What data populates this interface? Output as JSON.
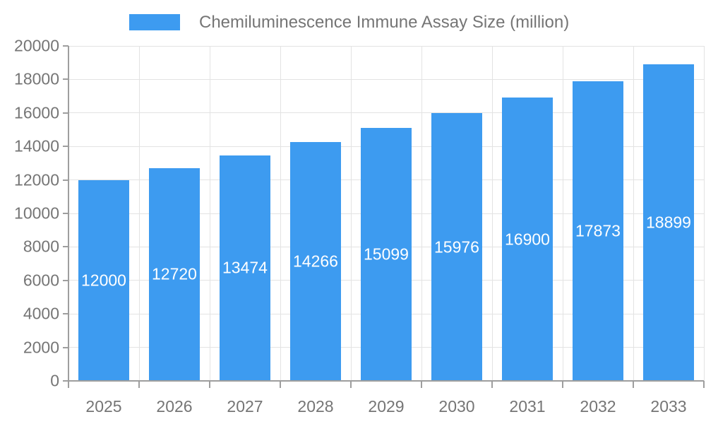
{
  "chart_data": {
    "type": "bar",
    "title": "",
    "legend": "Chemiluminescence Immune Assay Size (million)",
    "legend_position": "top",
    "categories": [
      "2025",
      "2026",
      "2027",
      "2028",
      "2029",
      "2030",
      "2031",
      "2032",
      "2033"
    ],
    "values": [
      12000,
      12720,
      13474,
      14266,
      15099,
      15976,
      16900,
      17873,
      18899
    ],
    "xlabel": "",
    "ylabel": "",
    "ylim": [
      0,
      20000
    ],
    "yticks": [
      0,
      2000,
      4000,
      6000,
      8000,
      10000,
      12000,
      14000,
      16000,
      18000,
      20000
    ],
    "grid": true,
    "value_labels": "inside-center",
    "colors": {
      "bar": "#3d9bf0",
      "grid": "#e3e3e3",
      "axis": "#9e9e9e",
      "tick_label": "#757575",
      "legend_label": "#757575",
      "value_label": "#ffffff",
      "background": "#ffffff"
    }
  }
}
